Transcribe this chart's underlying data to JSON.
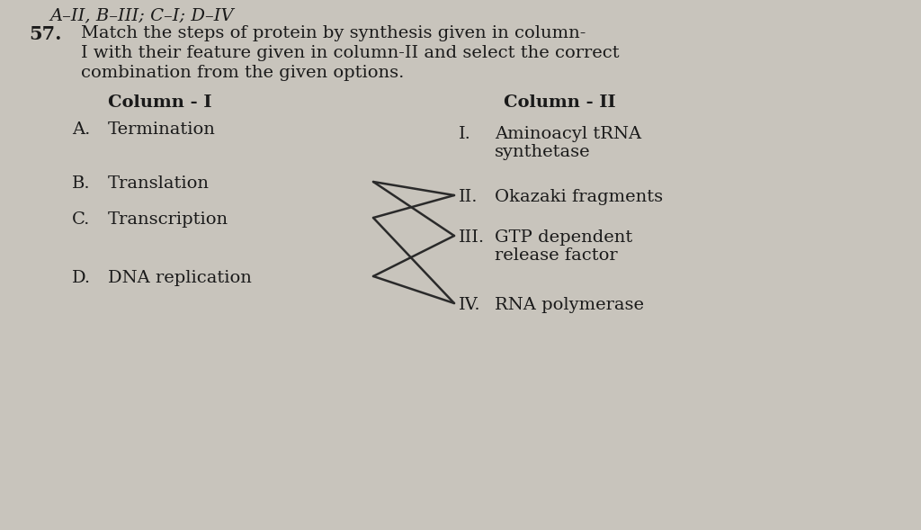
{
  "background_color": "#c8c4bc",
  "title_line": "A–II, B–III; C–I; D–IV",
  "question_number": "57.",
  "question_text_line1": "Match the steps of protein by synthesis given in column-",
  "question_text_line2": "I with their feature given in column-II and select the correct",
  "question_text_line3": "combination from the given options.",
  "col1_header": "Column - I",
  "col2_header": "Column - II",
  "col1_items": [
    {
      "label": "A.",
      "text": "Termination"
    },
    {
      "label": "B.",
      "text": "Translation"
    },
    {
      "label": "C.",
      "text": "Transcription"
    },
    {
      "label": "D.",
      "text": "DNA replication"
    }
  ],
  "col2_items": [
    {
      "label": "I.",
      "text": "Aminoacyl tRNA\nsynthetase"
    },
    {
      "label": "II.",
      "text": "Okazaki fragments"
    },
    {
      "label": "III.",
      "text": "GTP dependent\nrelease factor"
    },
    {
      "label": "IV.",
      "text": "RNA polymerase"
    }
  ],
  "font_color": "#1a1a1a",
  "font_size": 14,
  "font_size_header": 14,
  "line_color": "#2a2a2a",
  "line_width": 1.8
}
